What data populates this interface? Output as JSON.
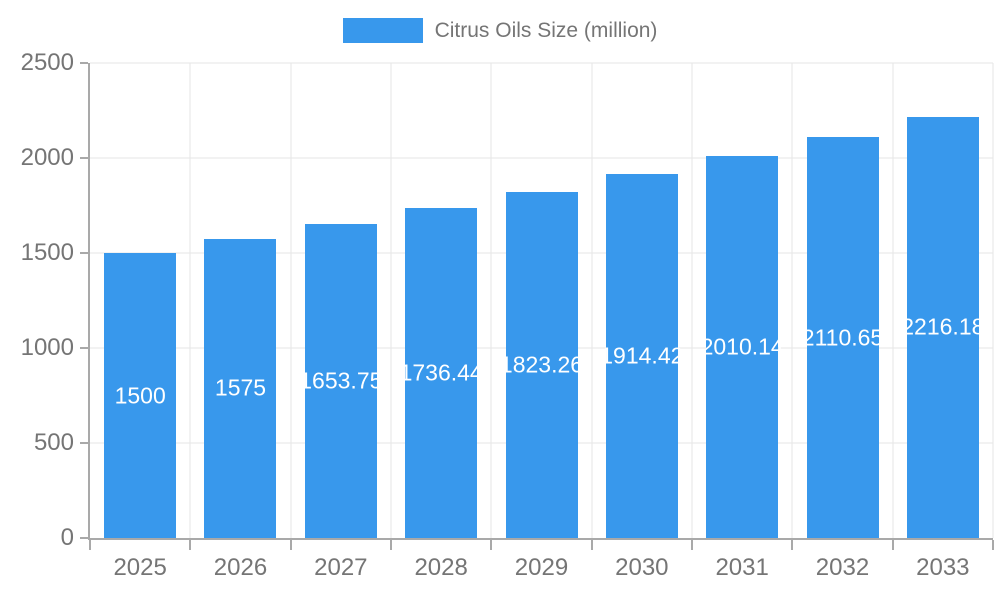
{
  "chart_data": {
    "type": "bar",
    "title": "Citrus Oils Size (million)",
    "legend": [
      "Citrus Oils Size (million)"
    ],
    "legend_position": "top",
    "categories": [
      "2025",
      "2026",
      "2027",
      "2028",
      "2029",
      "2030",
      "2031",
      "2032",
      "2033"
    ],
    "series": [
      {
        "name": "Citrus Oils Size (million)",
        "values": [
          1500,
          1575,
          1653.75,
          1736.44,
          1823.26,
          1914.42,
          2010.14,
          2110.65,
          2216.18
        ],
        "value_labels": [
          "1500",
          "1575",
          "1653.75",
          "1736.44",
          "1823.26",
          "1914.42",
          "2010.14",
          "2110.65",
          "2216.18"
        ]
      }
    ],
    "xlabel": "",
    "ylabel": "",
    "ylim": [
      0,
      2500
    ],
    "yticks": [
      0,
      500,
      1000,
      1500,
      2000,
      2500
    ],
    "ytick_labels": [
      "0",
      "500",
      "1000",
      "1500",
      "2000",
      "2500"
    ],
    "grid": true,
    "colors": {
      "bar": "#3898EC",
      "value_label": "#ffffff",
      "axis_text": "#757575",
      "grid_line": "#e6e6e6",
      "axis_line": "#a9a9a9",
      "background": "#ffffff"
    }
  }
}
